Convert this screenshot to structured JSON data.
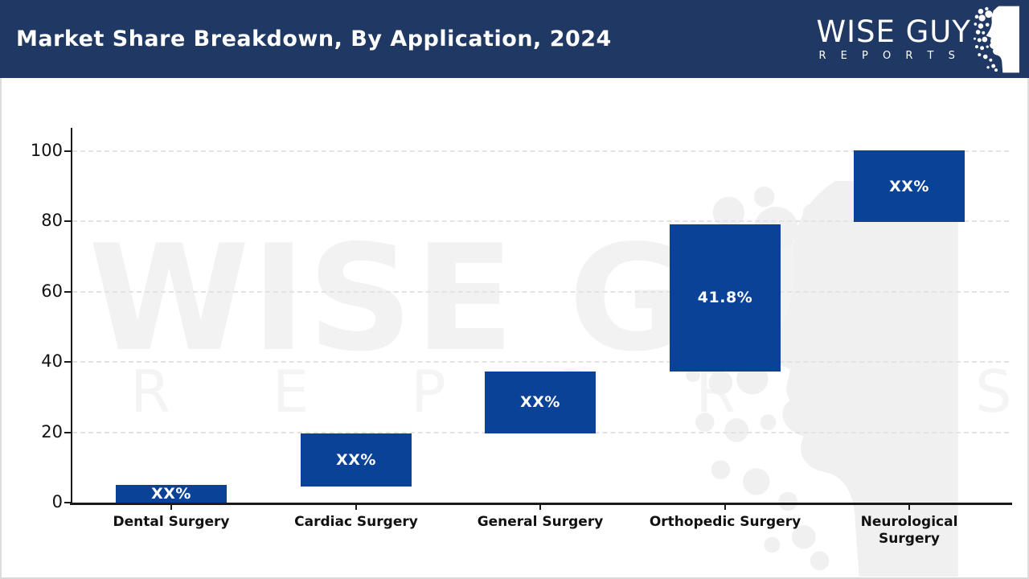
{
  "header": {
    "title": "Market Share Breakdown, By Application, 2024",
    "logo": {
      "name": "WISE GUY",
      "sub": "R E P O R T S"
    }
  },
  "watermark": {
    "line1": "WISE GUY",
    "line2": "R E P O R T S"
  },
  "chart_data": {
    "type": "bar",
    "subtype": "waterfall",
    "title": "Market Share Breakdown, By Application, 2024",
    "categories": [
      {
        "name": "Dental Surgery",
        "lines": [
          "Dental Surgery"
        ]
      },
      {
        "name": "Cardiac Surgery",
        "lines": [
          "Cardiac Surgery"
        ]
      },
      {
        "name": "General Surgery",
        "lines": [
          "General Surgery"
        ]
      },
      {
        "name": "Orthopedic Surgery",
        "lines": [
          "Orthopedic Surgery"
        ]
      },
      {
        "name": "Neurological Surgery",
        "lines": [
          "Neurological",
          "Surgery"
        ]
      }
    ],
    "segments": [
      {
        "label": "XX%",
        "start": 0,
        "end": 5.0
      },
      {
        "label": "XX%",
        "start": 4.6,
        "end": 19.7
      },
      {
        "label": "XX%",
        "start": 19.7,
        "end": 37.3
      },
      {
        "label": "41.8%",
        "start": 37.3,
        "end": 79.1
      },
      {
        "label": "XX%",
        "start": 79.7,
        "end": 100.1
      }
    ],
    "yticks": [
      0,
      20,
      40,
      60,
      80,
      100
    ],
    "ylim": [
      0,
      105
    ],
    "xlabel": "",
    "ylabel": "",
    "grid": "dashed-horizontal",
    "legend": "none",
    "bar_color": "#0a4298",
    "bar_label_color": "#ffffff",
    "header_color": "#1f3864",
    "watermark_text": "WISE GUY REPORTS"
  }
}
